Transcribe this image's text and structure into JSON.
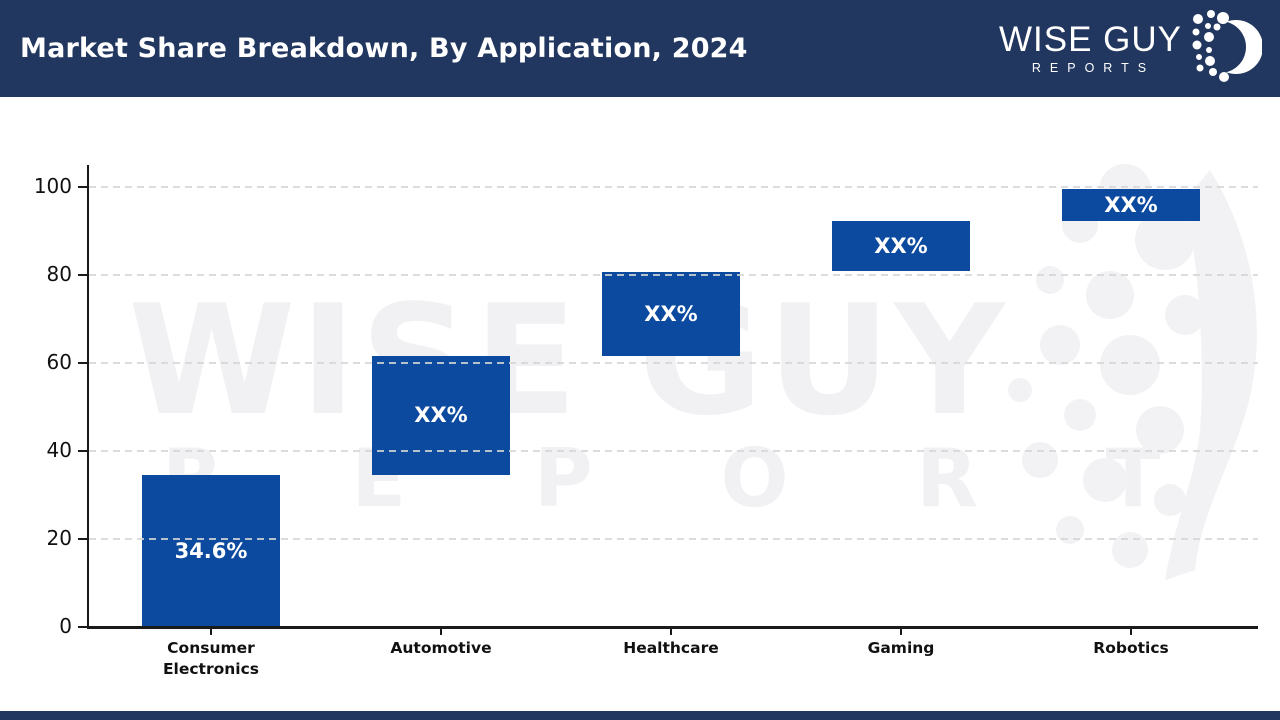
{
  "header": {
    "title": "Market Share Breakdown, By Application, 2024",
    "logo": {
      "name": "WISE GUY",
      "sub": "REPORTS"
    }
  },
  "watermark": {
    "line1": "WISE GUY",
    "line2": "REPORTS"
  },
  "colors": {
    "header_bg": "#21375F",
    "bar": "#0B4A9F",
    "bar_label_text": "#FFFFFF",
    "gridline": "#D6D6D6",
    "axis": "#1A1A1A",
    "watermark": "#F1F1F4"
  },
  "chart_data": {
    "type": "bar",
    "subtype": "waterfall",
    "title": "Market Share Breakdown, By Application, 2024",
    "categories": [
      "Consumer Electronics",
      "Automotive",
      "Healthcare",
      "Gaming",
      "Robotics"
    ],
    "segments": [
      {
        "category": "Consumer Electronics",
        "start": 0,
        "end": 34.6,
        "label": "34.6%"
      },
      {
        "category": "Automotive",
        "start": 34.6,
        "end": 61.6,
        "label": "XX%"
      },
      {
        "category": "Healthcare",
        "start": 61.6,
        "end": 80.7,
        "label": "XX%"
      },
      {
        "category": "Gaming",
        "start": 80.9,
        "end": 92.2,
        "label": "XX%"
      },
      {
        "category": "Robotics",
        "start": 92.3,
        "end": 99.6,
        "label": "XX%"
      }
    ],
    "xlabel": "",
    "ylabel": "",
    "ylim": [
      0,
      105
    ],
    "yticks": [
      0,
      20,
      40,
      60,
      80,
      100
    ],
    "grid": "dashed-horizontal",
    "legend": "none"
  }
}
